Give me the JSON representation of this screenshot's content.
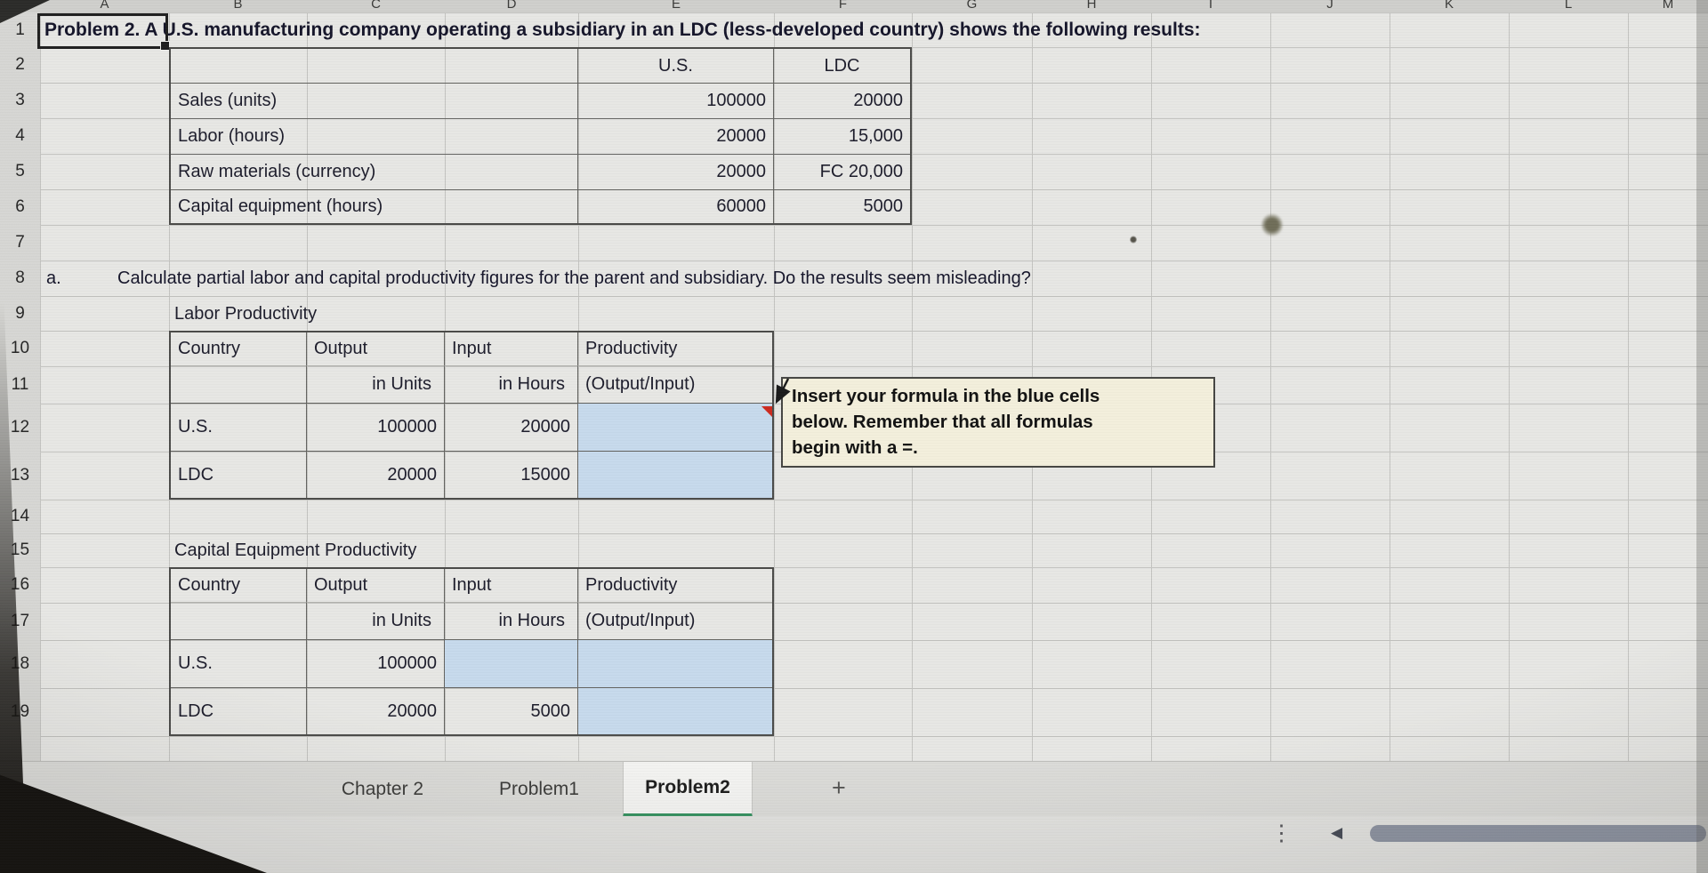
{
  "sheet": {
    "column_letters": [
      "A",
      "B",
      "C",
      "D",
      "E",
      "F",
      "G",
      "H",
      "I",
      "J",
      "K",
      "L",
      "M"
    ],
    "row_numbers": [
      "1",
      "2",
      "3",
      "4",
      "5",
      "6",
      "7",
      "8",
      "9",
      "10",
      "11",
      "12",
      "13",
      "14",
      "15",
      "16",
      "17",
      "18",
      "19"
    ],
    "problem_title": "Problem 2. A U.S. manufacturing company operating a subsidiary in an LDC (less-developed country) shows the following results:",
    "question_label": "a.",
    "question_text": "Calculate partial labor and capital productivity figures for the parent and subsidiary. Do the results seem misleading?"
  },
  "data_table": {
    "col_headers": {
      "us": "U.S.",
      "ldc": "LDC"
    },
    "rows": [
      {
        "label": "Sales (units)",
        "us": "100000",
        "ldc": "20000"
      },
      {
        "label": "Labor (hours)",
        "us": "20000",
        "ldc": "15,000"
      },
      {
        "label": "Raw materials (currency)",
        "us": "20000",
        "ldc": "FC 20,000"
      },
      {
        "label": "Capital equipment (hours)",
        "us": "60000",
        "ldc": "5000"
      }
    ]
  },
  "labor_table": {
    "title": "Labor Productivity",
    "headers": [
      "Country",
      "Output",
      "Input",
      "Productivity"
    ],
    "subheaders": [
      "",
      "in Units",
      "in Hours",
      "(Output/Input)"
    ],
    "rows": [
      {
        "country": "U.S.",
        "output": "100000",
        "input": "20000",
        "productivity": ""
      },
      {
        "country": "LDC",
        "output": "20000",
        "input": "15000",
        "productivity": ""
      }
    ]
  },
  "capital_table": {
    "title": "Capital Equipment Productivity",
    "headers": [
      "Country",
      "Output",
      "Input",
      "Productivity"
    ],
    "subheaders": [
      "",
      "in Units",
      "in Hours",
      "(Output/Input)"
    ],
    "rows": [
      {
        "country": "U.S.",
        "output": "100000",
        "input": "",
        "productivity": ""
      },
      {
        "country": "LDC",
        "output": "20000",
        "input": "5000",
        "productivity": ""
      }
    ]
  },
  "note": {
    "text": "Insert your formula in the blue cells\nbelow.  Remember that all formulas\nbegin with a  =."
  },
  "tabs": {
    "items": [
      "Chapter 2",
      "Problem1",
      "Problem2"
    ],
    "active": "Problem2",
    "add_label": "+"
  },
  "icons": {
    "nav_left": "‹",
    "nav_right": "›",
    "scroll_left": "◀",
    "menu_dots": "⋮"
  },
  "colors": {
    "blue_cell": "#c6d9ec",
    "note_bg": "#f3efdb",
    "active_tab_underline": "#35915f",
    "grid_bg": "#e7e7e4"
  }
}
